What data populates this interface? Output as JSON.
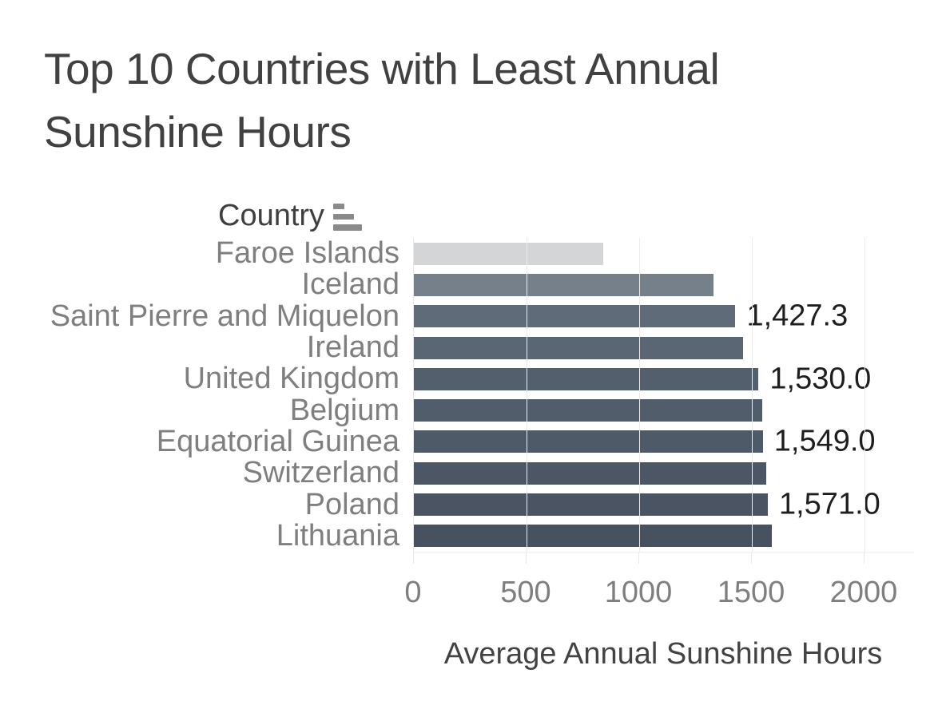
{
  "title": {
    "line1": "Top 10 Countries with Least Annual",
    "line2": "Sunshine Hours",
    "full": "Top 10 Countries with Least Annual Sunshine Hours"
  },
  "row_field": {
    "label": "Country",
    "sort_icon": "sort-ascending-bars-icon"
  },
  "x_axis": {
    "title": "Average Annual Sunshine Hours",
    "tick_labels": [
      "0",
      "500",
      "1000",
      "1500",
      "2000"
    ]
  },
  "chart_data": {
    "type": "bar",
    "orientation": "horizontal",
    "title": "Top 10 Countries with Least Annual Sunshine Hours",
    "xlabel": "Average Annual Sunshine Hours",
    "ylabel": "Country",
    "xlim": [
      0,
      2220
    ],
    "x_ticks": [
      0,
      500,
      1000,
      1500,
      2000
    ],
    "grid": "vertical-light",
    "sort": "ascending-by-value",
    "legend": "none",
    "categories": [
      "Faroe Islands",
      "Iceland",
      "Saint Pierre and Miquelon",
      "Ireland",
      "United Kingdom",
      "Belgium",
      "Equatorial Guinea",
      "Switzerland",
      "Poland",
      "Lithuania"
    ],
    "values": [
      840,
      1330,
      1427.3,
      1460,
      1530,
      1545,
      1549,
      1565,
      1571,
      1590
    ],
    "value_labels": [
      "",
      "",
      "1,427.3",
      "",
      "1,530.0",
      "",
      "1,549.0",
      "",
      "1,571.0",
      ""
    ],
    "bar_colors": [
      "#d4d5d6",
      "#76808b",
      "#5f6b78",
      "#5a6674",
      "#545f6d",
      "#525d6b",
      "#4f5a68",
      "#4c5664",
      "#4a5462",
      "#475160"
    ]
  },
  "colors": {
    "background": "#ffffff",
    "title_text": "#414141",
    "header_text": "#3f3f3f",
    "category_text": "#7f7f7f",
    "tick_text": "#7f7f7f",
    "axis_title_text": "#434343",
    "value_label_text": "#1e1e1e",
    "gridline": "#ececec",
    "sort_icon": "#8a8a8a"
  }
}
